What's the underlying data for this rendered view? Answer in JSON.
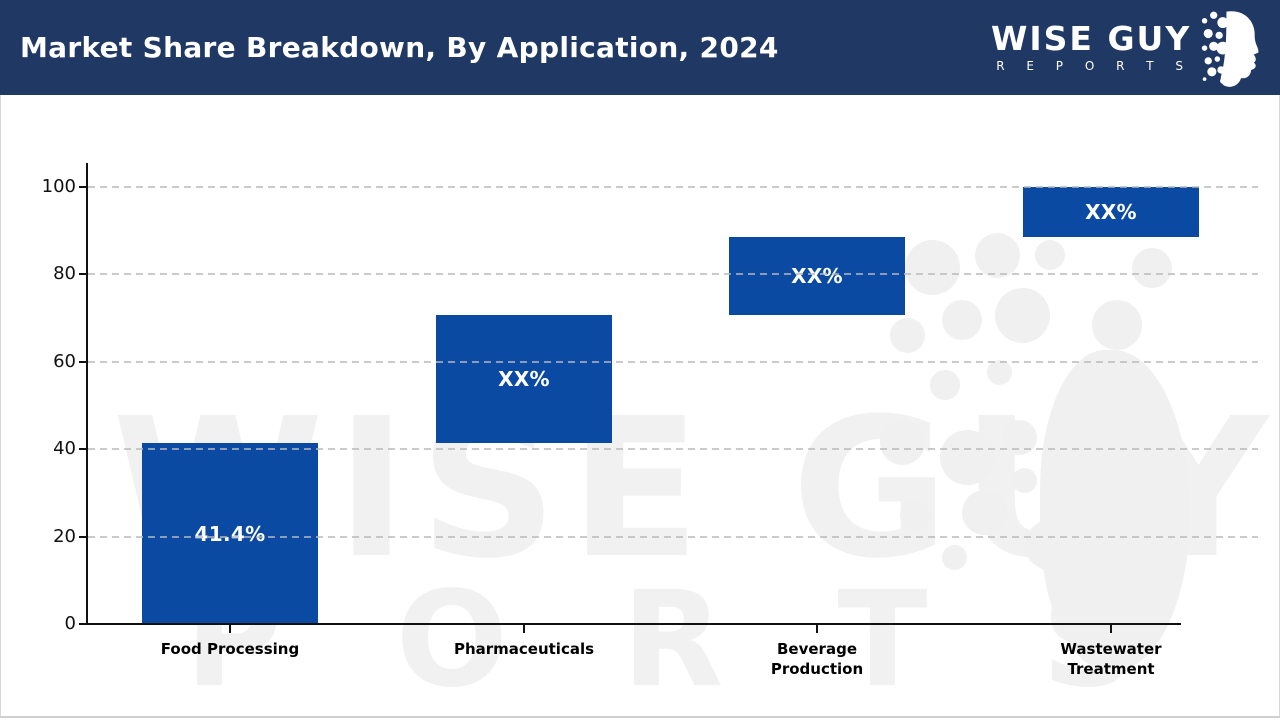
{
  "header": {
    "title": "Market Share Breakdown, By Application, 2024",
    "logo": {
      "line1": "WISE GUY",
      "line2": "R E P O R T S"
    }
  },
  "watermark": {
    "line1": "WISE GUY",
    "line2": "P O R T S"
  },
  "colors": {
    "header_bg": "#1f3864",
    "bar": "#0b4aa2",
    "grid_on_white": "#e0e0e0",
    "axis": "#111111",
    "bar_label": "#ffffff"
  },
  "chart_data": {
    "type": "bar",
    "subtype": "waterfall",
    "title": "Market Share Breakdown, By Application, 2024",
    "categories": [
      "Food Processing",
      "Pharmaceuticals",
      "Beverage Production",
      "Wastewater Treatment"
    ],
    "category_lines": [
      [
        "Food Processing"
      ],
      [
        "Pharmaceuticals"
      ],
      [
        "Beverage",
        "Production"
      ],
      [
        "Wastewater",
        "Treatment"
      ]
    ],
    "series": [
      {
        "name": "Market Share",
        "segments": [
          {
            "category": "Food Processing",
            "start": 0,
            "end": 41.4,
            "label": "41.4%"
          },
          {
            "category": "Pharmaceuticals",
            "start": 41.4,
            "end": 70.8,
            "label": "XX%"
          },
          {
            "category": "Beverage Production",
            "start": 70.8,
            "end": 88.5,
            "label": "XX%"
          },
          {
            "category": "Wastewater Treatment",
            "start": 88.5,
            "end": 100,
            "label": "XX%"
          }
        ]
      }
    ],
    "ylim": [
      0,
      100
    ],
    "yticks": [
      0,
      20,
      40,
      60,
      80,
      100
    ],
    "xlabel": "",
    "ylabel": "",
    "grid": "horizontal-dashed",
    "legend": "none"
  }
}
